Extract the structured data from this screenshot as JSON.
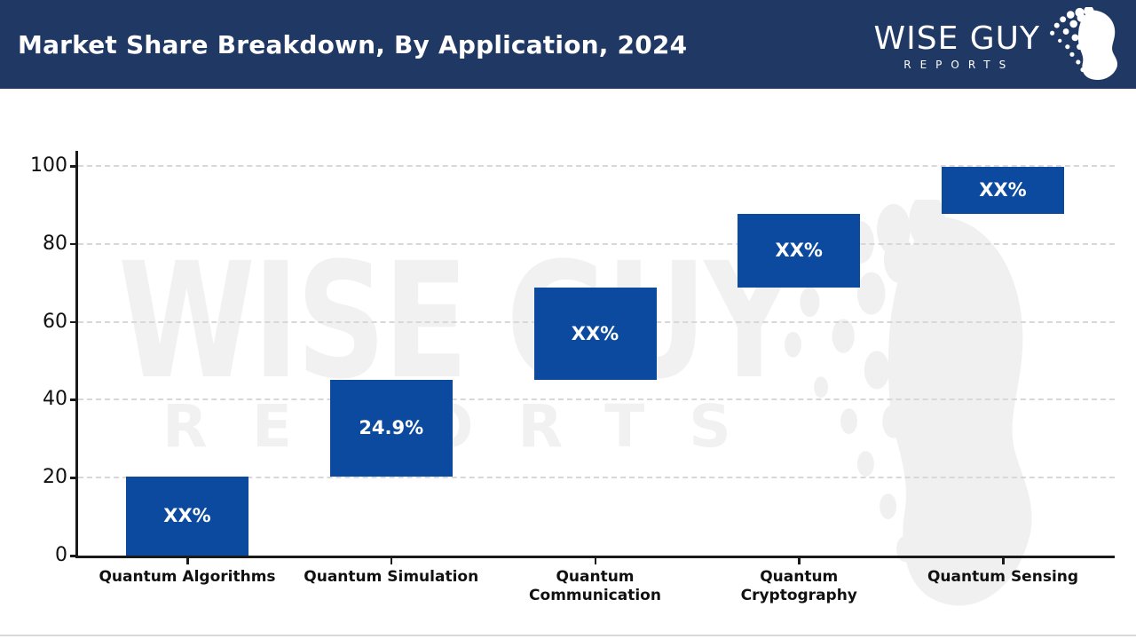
{
  "header": {
    "title": "Market Share Breakdown, By Application, 2024",
    "logo": {
      "line1": "WISE GUY",
      "line2": "REPORTS"
    }
  },
  "watermark": {
    "line1": "WISE GUY",
    "line2": "REPORTS"
  },
  "chart_data": {
    "type": "bar",
    "variant": "floating-waterfall",
    "title": "Market Share Breakdown, By Application, 2024",
    "categories": [
      "Quantum Algorithms",
      "Quantum Simulation",
      "Quantum Communication",
      "Quantum Cryptography",
      "Quantum Sensing"
    ],
    "category_label_lines": [
      [
        "Quantum Algorithms"
      ],
      [
        "Quantum Simulation"
      ],
      [
        "Quantum",
        "Communication"
      ],
      [
        "Quantum",
        "Cryptography"
      ],
      [
        "Quantum Sensing"
      ]
    ],
    "series": [
      {
        "name": "Market Share",
        "segments": [
          {
            "category": "Quantum Algorithms",
            "start": 0,
            "end": 20.3,
            "label": "XX%"
          },
          {
            "category": "Quantum Simulation",
            "start": 20.3,
            "end": 45.2,
            "label": "24.9%"
          },
          {
            "category": "Quantum Communication",
            "start": 45.2,
            "end": 68.7,
            "label": "XX%"
          },
          {
            "category": "Quantum Cryptography",
            "start": 68.7,
            "end": 87.8,
            "label": "XX%"
          },
          {
            "category": "Quantum Sensing",
            "start": 87.8,
            "end": 99.8,
            "label": "XX%"
          }
        ]
      }
    ],
    "xlabel": "",
    "ylabel": "",
    "yticks": [
      0,
      20,
      40,
      60,
      80,
      100
    ],
    "ylim": [
      0,
      104
    ],
    "grid": {
      "horizontal": true,
      "style": "dashed",
      "color": "#d8d8d8"
    },
    "legend": "none",
    "colors": {
      "bar": "#0b4a9e",
      "bar_label": "#ffffff",
      "axis": "#1a1a1a",
      "header_bg": "#203864",
      "watermark": "#f1f1f1"
    }
  }
}
